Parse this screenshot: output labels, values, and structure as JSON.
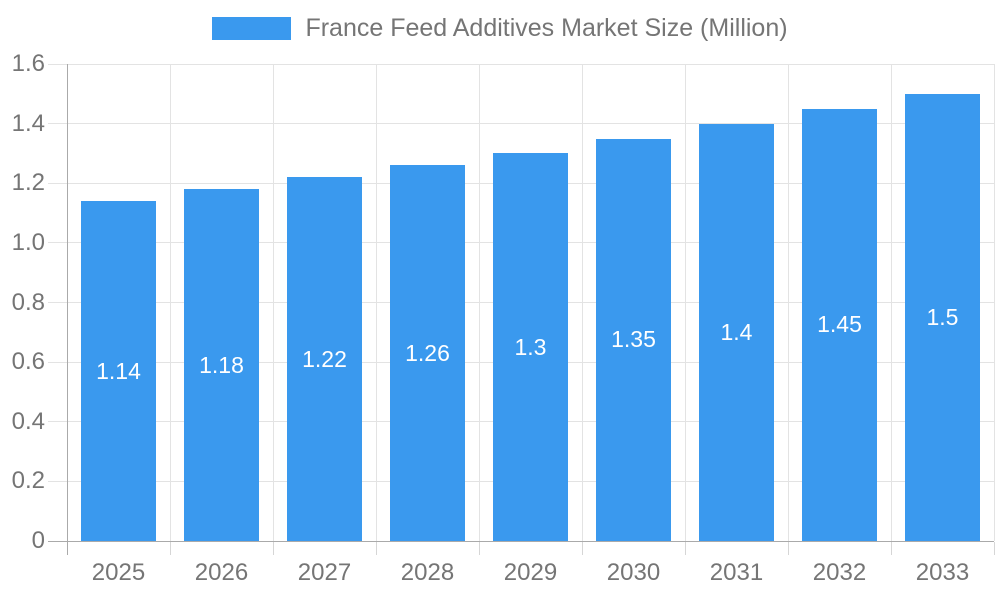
{
  "legend": {
    "label": "France Feed Additives Market Size (Million)",
    "swatch_color": "#3A99EE"
  },
  "chart_data": {
    "type": "bar",
    "title": "France Feed Additives Market Size (Million)",
    "categories": [
      "2025",
      "2026",
      "2027",
      "2028",
      "2029",
      "2030",
      "2031",
      "2032",
      "2033"
    ],
    "values": [
      1.14,
      1.18,
      1.22,
      1.26,
      1.3,
      1.35,
      1.4,
      1.45,
      1.5
    ],
    "value_labels": [
      "1.14",
      "1.18",
      "1.22",
      "1.26",
      "1.3",
      "1.35",
      "1.4",
      "1.45",
      "1.5"
    ],
    "xlabel": "",
    "ylabel": "",
    "ylim": [
      0,
      1.6
    ],
    "y_ticks": [
      {
        "value": 0,
        "label": "0"
      },
      {
        "value": 0.2,
        "label": "0.2"
      },
      {
        "value": 0.4,
        "label": "0.4"
      },
      {
        "value": 0.6,
        "label": "0.6"
      },
      {
        "value": 0.8,
        "label": "0.8"
      },
      {
        "value": 1.0,
        "label": "1.0"
      },
      {
        "value": 1.2,
        "label": "1.2"
      },
      {
        "value": 1.4,
        "label": "1.4"
      },
      {
        "value": 1.6,
        "label": "1.6"
      }
    ],
    "grid": true,
    "legend_position": "top-center",
    "colors": {
      "bar": "#3A99EE",
      "bar_label": "#FFFFFF",
      "axis": "#AAAAAA",
      "grid": "#E3E3E3",
      "tick_text": "#757575",
      "background": "#FFFFFF"
    }
  }
}
